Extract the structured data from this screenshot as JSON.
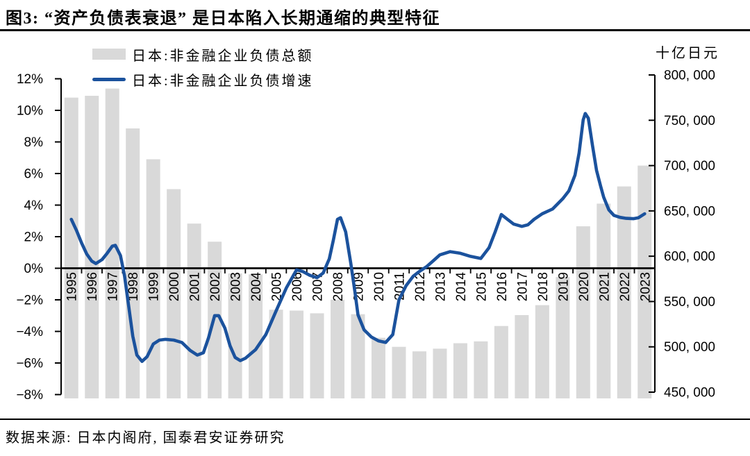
{
  "figure": {
    "title": "图3: “资产负债表衰退” 是日本陷入长期通缩的典型特征",
    "source": "数据来源: 日本内阁府, 国泰君安证券研究",
    "right_axis_unit": "十亿日元"
  },
  "legend": {
    "items": [
      {
        "label": "日本:非金融企业负债总额",
        "swatch": "bar"
      },
      {
        "label": "日本:非金融企业负债增速",
        "swatch": "line"
      }
    ]
  },
  "colors": {
    "bar": "#D9D9D9",
    "line": "#1B529D",
    "axis": "#000000",
    "text": "#000000"
  },
  "chart_data": {
    "type": "bar+line",
    "title": "图3: “资产负债表衰退” 是日本陷入长期通缩的典型特征",
    "categories": [
      "1995",
      "1996",
      "1997",
      "1998",
      "1999",
      "2000",
      "2001",
      "2002",
      "2003",
      "2004",
      "2005",
      "2006",
      "2007",
      "2008",
      "2009",
      "2010",
      "2011",
      "2012",
      "2013",
      "2014",
      "2015",
      "2016",
      "2017",
      "2018",
      "2019",
      "2020",
      "2021",
      "2022",
      "2023"
    ],
    "series": [
      {
        "name": "日本:非金融企业负债总额",
        "type": "bar",
        "axis": "right",
        "unit": "十亿日元",
        "values": [
          775000,
          777000,
          785000,
          741000,
          707000,
          674000,
          636000,
          616000,
          581000,
          580000,
          541000,
          540000,
          537000,
          552000,
          536000,
          510000,
          500000,
          495000,
          498000,
          504000,
          506000,
          523000,
          535000,
          546000,
          577000,
          633000,
          658000,
          677000,
          700000
        ]
      },
      {
        "name": "日本:非金融企业负债增速",
        "type": "line",
        "axis": "left",
        "unit": "%",
        "annual_values": [
          3.1,
          0.4,
          1.4,
          -4.3,
          -4.8,
          -4.6,
          -5.5,
          -3.0,
          -5.7,
          -5.2,
          -2.7,
          -0.1,
          -0.6,
          3.1,
          -3.0,
          -4.6,
          -2.0,
          -0.2,
          0.9,
          1.0,
          0.6,
          3.4,
          2.7,
          3.5,
          4.4,
          9.4,
          4.5,
          3.2,
          3.5
        ],
        "curve_points": [
          [
            1995.0,
            3.1
          ],
          [
            1995.25,
            2.4
          ],
          [
            1995.5,
            1.6
          ],
          [
            1995.75,
            0.9
          ],
          [
            1996.0,
            0.45
          ],
          [
            1996.2,
            0.3
          ],
          [
            1996.5,
            0.55
          ],
          [
            1996.75,
            0.95
          ],
          [
            1997.0,
            1.4
          ],
          [
            1997.15,
            1.45
          ],
          [
            1997.4,
            0.8
          ],
          [
            1997.6,
            -0.5
          ],
          [
            1997.8,
            -2.4
          ],
          [
            1998.0,
            -4.3
          ],
          [
            1998.2,
            -5.5
          ],
          [
            1998.45,
            -5.9
          ],
          [
            1998.7,
            -5.6
          ],
          [
            1999.0,
            -4.8
          ],
          [
            1999.3,
            -4.55
          ],
          [
            1999.6,
            -4.5
          ],
          [
            2000.0,
            -4.55
          ],
          [
            2000.4,
            -4.7
          ],
          [
            2000.8,
            -5.2
          ],
          [
            2001.15,
            -5.5
          ],
          [
            2001.45,
            -5.35
          ],
          [
            2001.7,
            -4.4
          ],
          [
            2002.0,
            -3.0
          ],
          [
            2002.2,
            -3.0
          ],
          [
            2002.5,
            -3.8
          ],
          [
            2002.75,
            -4.9
          ],
          [
            2003.0,
            -5.65
          ],
          [
            2003.25,
            -5.85
          ],
          [
            2003.5,
            -5.7
          ],
          [
            2004.0,
            -5.15
          ],
          [
            2004.5,
            -4.2
          ],
          [
            2005.0,
            -2.7
          ],
          [
            2005.5,
            -1.25
          ],
          [
            2006.0,
            -0.1
          ],
          [
            2006.3,
            -0.2
          ],
          [
            2006.65,
            -0.45
          ],
          [
            2007.0,
            -0.6
          ],
          [
            2007.3,
            -0.3
          ],
          [
            2007.6,
            0.6
          ],
          [
            2007.8,
            1.8
          ],
          [
            2008.0,
            3.1
          ],
          [
            2008.15,
            3.2
          ],
          [
            2008.4,
            2.3
          ],
          [
            2008.65,
            0.3
          ],
          [
            2008.85,
            -1.5
          ],
          [
            2009.0,
            -2.95
          ],
          [
            2009.3,
            -3.9
          ],
          [
            2009.65,
            -4.35
          ],
          [
            2010.0,
            -4.6
          ],
          [
            2010.35,
            -4.7
          ],
          [
            2010.7,
            -4.2
          ],
          [
            2011.0,
            -2.0
          ],
          [
            2011.35,
            -1.1
          ],
          [
            2011.7,
            -0.5
          ],
          [
            2012.0,
            -0.2
          ],
          [
            2012.35,
            0.1
          ],
          [
            2012.7,
            0.5
          ],
          [
            2013.0,
            0.85
          ],
          [
            2013.5,
            1.05
          ],
          [
            2014.0,
            0.95
          ],
          [
            2014.5,
            0.75
          ],
          [
            2015.0,
            0.62
          ],
          [
            2015.4,
            1.3
          ],
          [
            2015.7,
            2.3
          ],
          [
            2016.0,
            3.4
          ],
          [
            2016.3,
            3.1
          ],
          [
            2016.6,
            2.8
          ],
          [
            2017.0,
            2.65
          ],
          [
            2017.3,
            2.75
          ],
          [
            2017.6,
            3.1
          ],
          [
            2018.0,
            3.45
          ],
          [
            2018.5,
            3.75
          ],
          [
            2019.0,
            4.4
          ],
          [
            2019.3,
            4.9
          ],
          [
            2019.6,
            5.9
          ],
          [
            2019.8,
            7.3
          ],
          [
            2020.0,
            9.4
          ],
          [
            2020.1,
            9.8
          ],
          [
            2020.25,
            9.5
          ],
          [
            2020.45,
            7.8
          ],
          [
            2020.65,
            6.2
          ],
          [
            2020.85,
            5.2
          ],
          [
            2021.0,
            4.5
          ],
          [
            2021.25,
            3.7
          ],
          [
            2021.5,
            3.35
          ],
          [
            2021.8,
            3.22
          ],
          [
            2022.1,
            3.16
          ],
          [
            2022.45,
            3.14
          ],
          [
            2022.7,
            3.2
          ],
          [
            2023.0,
            3.45
          ]
        ]
      }
    ],
    "left_axis": {
      "unit": "%",
      "min": -8,
      "max": 12,
      "tick_labels": [
        "12%",
        "10%",
        "8%",
        "6%",
        "4%",
        "2%",
        "0%",
        "−2%",
        "−4%",
        "−6%",
        "−8%"
      ]
    },
    "right_axis": {
      "unit": "十亿日元",
      "min": 450000,
      "max": 800000,
      "tick_labels": [
        "800, 000",
        "750, 000",
        "700, 000",
        "650, 000",
        "600, 000",
        "550, 000",
        "500, 000",
        "450, 000"
      ]
    },
    "grid": false,
    "legend_position": "top-left",
    "x_labels_rotated_90": true
  }
}
